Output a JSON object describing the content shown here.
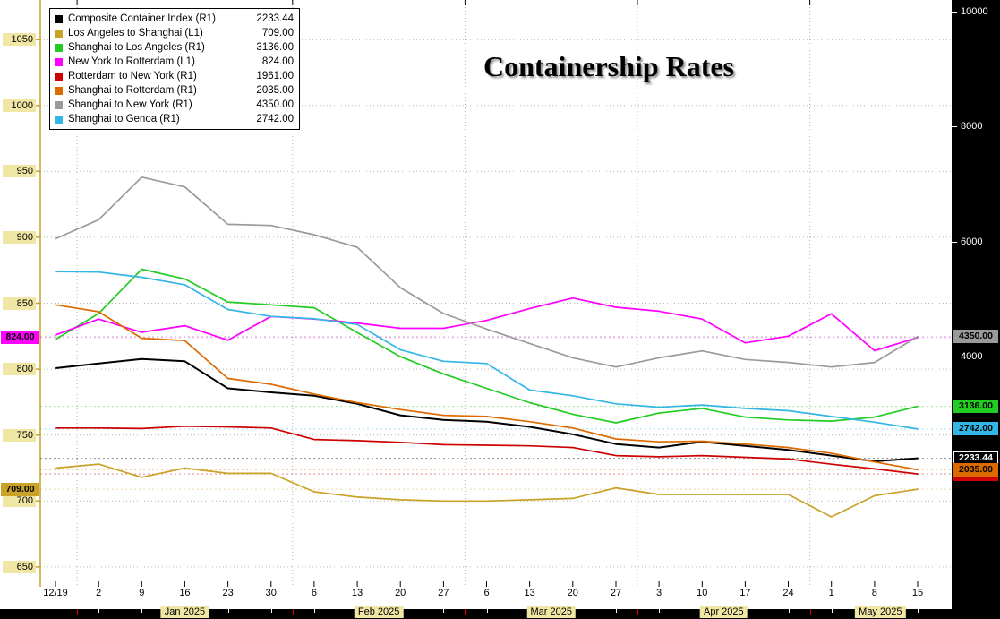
{
  "title": "Containership Rates",
  "chart_data": {
    "type": "line",
    "title": "Containership Rates",
    "legend_position": "top-left",
    "grid": true,
    "x_tick_labels": [
      "12/19",
      "2",
      "9",
      "16",
      "23",
      "30",
      "6",
      "13",
      "20",
      "27",
      "6",
      "13",
      "20",
      "27",
      "3",
      "10",
      "17",
      "24",
      "1",
      "8",
      "15"
    ],
    "month_labels": [
      "Jan 2025",
      "Feb 2025",
      "Mar 2025",
      "Apr 2025",
      "May 2025"
    ],
    "month_boundaries": [
      0.5,
      5.5,
      9.5,
      13.5,
      17.5
    ],
    "left_axis": {
      "label": "L1",
      "ticks": [
        650,
        700,
        750,
        800,
        850,
        900,
        950,
        1000,
        1050
      ],
      "min": 635,
      "max": 1080
    },
    "right_axis": {
      "label": "R1",
      "ticks": [
        4000,
        6000,
        8000,
        10000
      ],
      "min": 0,
      "max": 10200
    },
    "colors": {
      "grid": "#B3B3B3",
      "axis_left": "#C9A227",
      "label_bg": "#F1E7A5",
      "strip_bg": "#000000",
      "background": "#FFFFFF"
    },
    "series": [
      {
        "id": "composite-container-index",
        "label": "Composite Container Index (R1)",
        "axis": "R1",
        "color": "#000000",
        "badge_text": "#ffffff",
        "last": "2233.44",
        "values": [
          3800,
          3880,
          3960,
          3920,
          3450,
          3380,
          3320,
          3180,
          2980,
          2900,
          2870,
          2780,
          2650,
          2480,
          2420,
          2520,
          2450,
          2380,
          2280,
          2180,
          2233.44
        ]
      },
      {
        "id": "los-angeles-to-shanghai",
        "label": "Los Angeles to Shanghai (L1)",
        "axis": "L1",
        "color": "#C9A227",
        "badge_text": "#000000",
        "last": "709.00",
        "values": [
          725,
          728,
          718,
          725,
          721,
          721,
          707,
          703,
          701,
          700,
          700,
          701,
          702,
          710,
          705,
          705,
          705,
          705,
          688,
          704,
          709
        ]
      },
      {
        "id": "shanghai-to-los-angeles",
        "label": "Shanghai to Los Angeles (R1)",
        "axis": "R1",
        "color": "#22CC22",
        "badge_text": "#000000",
        "last": "3136.00",
        "values": [
          4300,
          4750,
          5520,
          5350,
          4950,
          4900,
          4850,
          4420,
          4000,
          3700,
          3450,
          3200,
          3000,
          2850,
          3020,
          3100,
          2950,
          2900,
          2880,
          2950,
          3136
        ]
      },
      {
        "id": "new-york-to-rotterdam",
        "label": "New York to Rotterdam (L1)",
        "axis": "L1",
        "color": "#FF00FF",
        "badge_text": "#000000",
        "last": "824.00",
        "values": [
          826,
          838,
          828,
          833,
          822,
          840,
          838,
          835,
          831,
          831,
          837,
          846,
          854,
          847,
          844,
          838,
          820,
          825,
          842,
          814,
          824
        ]
      },
      {
        "id": "rotterdam-to-new-york",
        "label": "Rotterdam to New York (R1)",
        "axis": "R1",
        "color": "#CC0000",
        "badge_text": "#ffffff",
        "last": "1961.00",
        "values": [
          2760,
          2760,
          2750,
          2790,
          2780,
          2760,
          2560,
          2540,
          2510,
          2470,
          2460,
          2450,
          2420,
          2280,
          2260,
          2280,
          2250,
          2220,
          2130,
          2050,
          1961
        ]
      },
      {
        "id": "shanghai-to-rotterdam",
        "label": "Shanghai to Rotterdam (R1)",
        "axis": "R1",
        "color": "#DD6A00",
        "badge_text": "#000000",
        "last": "2035.00",
        "values": [
          4900,
          4780,
          4320,
          4280,
          3620,
          3520,
          3350,
          3200,
          3080,
          2980,
          2960,
          2870,
          2760,
          2570,
          2520,
          2530,
          2480,
          2420,
          2320,
          2170,
          2035
        ]
      },
      {
        "id": "shanghai-to-new-york",
        "label": "Shanghai to New York (R1)",
        "axis": "R1",
        "color": "#9A9A9A",
        "badge_text": "#000000",
        "last": "4350.00",
        "values": [
          6050,
          6380,
          7120,
          6950,
          6300,
          6280,
          6120,
          5900,
          5200,
          4750,
          4480,
          4230,
          3980,
          3820,
          3980,
          4100,
          3950,
          3900,
          3820,
          3900,
          4350
        ]
      },
      {
        "id": "shanghai-to-genoa",
        "label": "Shanghai to Genoa (R1)",
        "axis": "R1",
        "color": "#33B5E5",
        "badge_text": "#000000",
        "last": "2742.00",
        "values": [
          5480,
          5470,
          5380,
          5250,
          4820,
          4700,
          4660,
          4560,
          4120,
          3920,
          3880,
          3420,
          3320,
          3180,
          3120,
          3160,
          3100,
          3060,
          2960,
          2860,
          2742
        ]
      }
    ]
  }
}
